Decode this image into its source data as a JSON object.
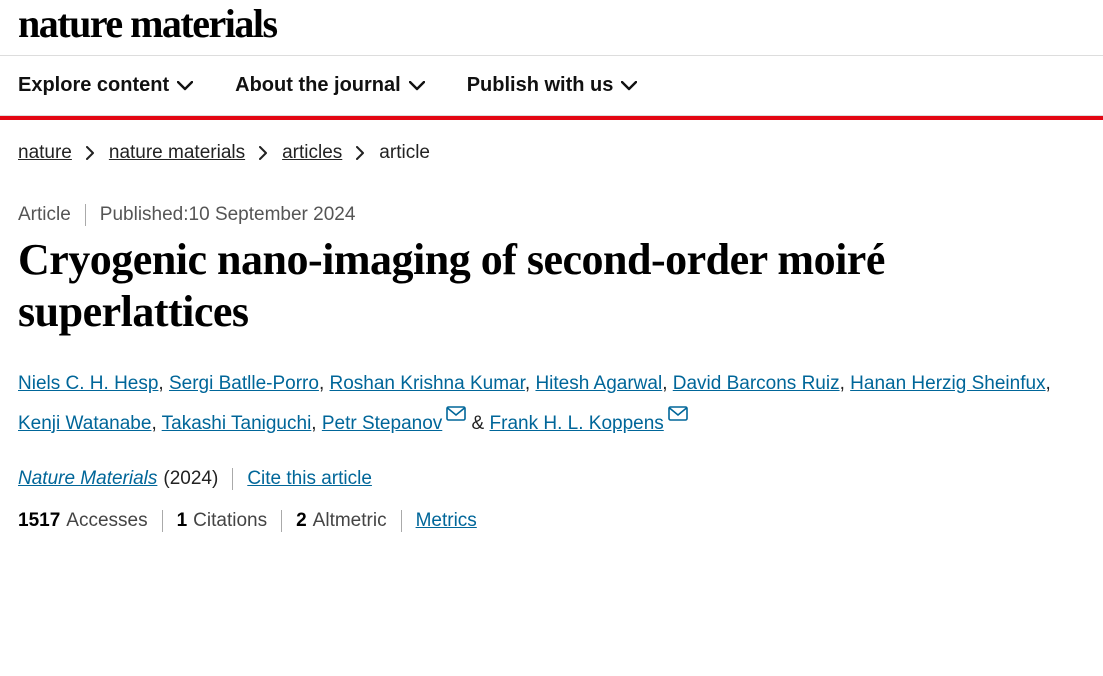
{
  "brand": {
    "logo_text": "nature materials"
  },
  "nav": {
    "items": [
      {
        "label": "Explore content"
      },
      {
        "label": "About the journal"
      },
      {
        "label": "Publish with us"
      }
    ]
  },
  "breadcrumb": {
    "items": [
      {
        "label": "nature",
        "link": true
      },
      {
        "label": "nature materials",
        "link": true
      },
      {
        "label": "articles",
        "link": true
      },
      {
        "label": "article",
        "link": false
      }
    ]
  },
  "article": {
    "type_label": "Article",
    "published_prefix": "Published: ",
    "published_date": "10 September 2024",
    "title": "Cryogenic nano-imaging of second-order moiré superlattices",
    "authors": [
      {
        "name": "Niels C. H. Hesp",
        "corresponding": false
      },
      {
        "name": "Sergi Batlle-Porro",
        "corresponding": false
      },
      {
        "name": "Roshan Krishna Kumar",
        "corresponding": false
      },
      {
        "name": "Hitesh Agarwal",
        "corresponding": false
      },
      {
        "name": "David Barcons Ruiz",
        "corresponding": false
      },
      {
        "name": "Hanan Herzig Sheinfux",
        "corresponding": false
      },
      {
        "name": "Kenji Watanabe",
        "corresponding": false
      },
      {
        "name": "Takashi Taniguchi",
        "corresponding": false
      },
      {
        "name": "Petr Stepanov",
        "corresponding": true
      },
      {
        "name": "Frank H. L. Koppens",
        "corresponding": true
      }
    ],
    "author_separator": ", ",
    "author_last_separator": " & ",
    "journal_name": "Nature Materials",
    "journal_year": "(2024)",
    "cite_label": "Cite this article",
    "metrics": {
      "accesses_value": "1517",
      "accesses_label": "Accesses",
      "citations_value": "1",
      "citations_label": "Citations",
      "altmetric_value": "2",
      "altmetric_label": "Altmetric",
      "metrics_link_label": "Metrics"
    }
  },
  "colors": {
    "accent_red": "#e30613",
    "link_blue": "#006699",
    "text": "#222222",
    "muted": "#555555"
  }
}
